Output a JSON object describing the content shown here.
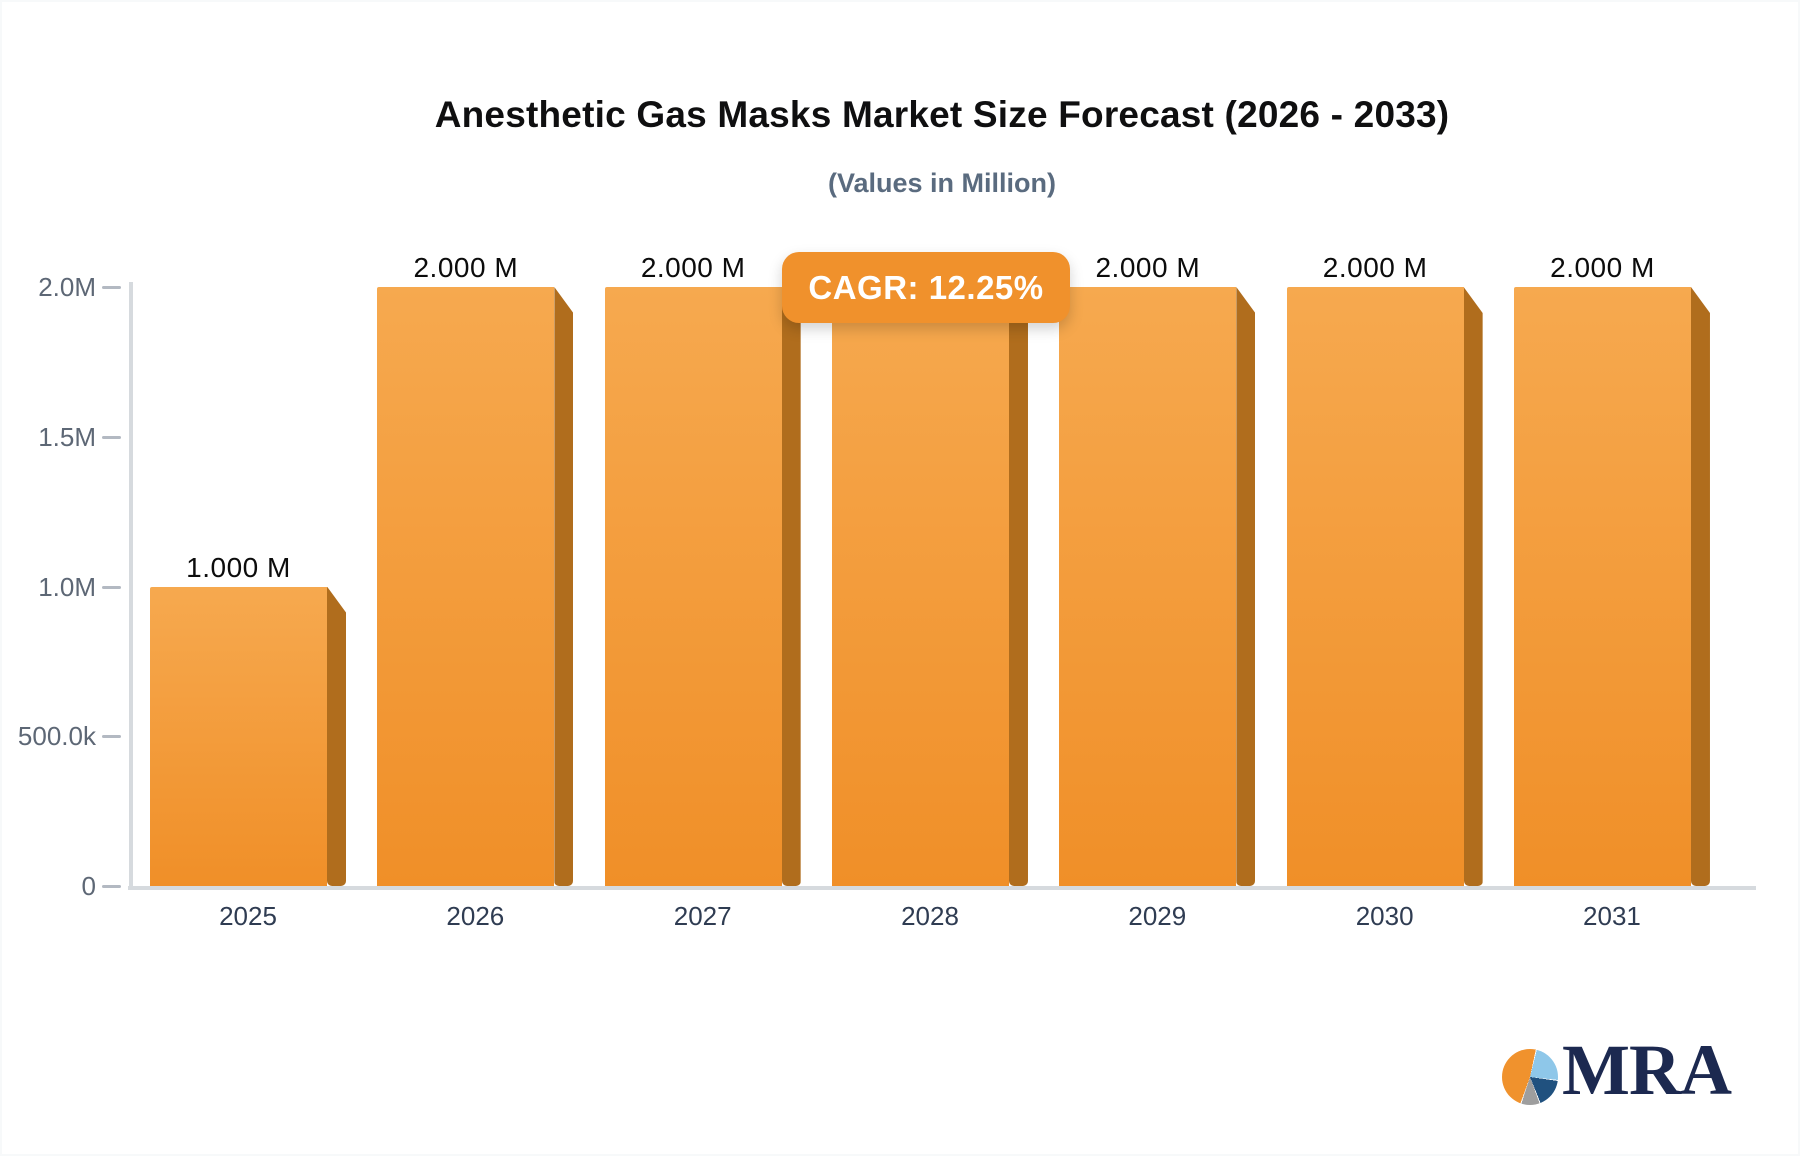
{
  "header": {
    "title": "Anesthetic Gas Masks Market Size Forecast (2026 - 2033)",
    "subtitle": "(Values in Million)"
  },
  "cagr_badge": {
    "label": "CAGR: 12.25%",
    "bg_color": "#f0912c",
    "text_color": "#ffffff"
  },
  "chart_data": {
    "type": "bar",
    "title": "Anesthetic Gas Masks Market Size Forecast (2026 - 2033)",
    "subtitle": "(Values in Million)",
    "unit": "Million",
    "categories": [
      "2025",
      "2026",
      "2027",
      "2028",
      "2029",
      "2030",
      "2031"
    ],
    "values": [
      1.0,
      2.0,
      2.0,
      2.0,
      2.0,
      2.0,
      2.0
    ],
    "value_labels": [
      "1.000 M",
      "2.000 M",
      "2.000 M",
      "2.000 M",
      "2.000 M",
      "2.000 M",
      "2.000 M"
    ],
    "ylim": [
      0,
      2.0
    ],
    "y_ticks": [
      {
        "value": 0.0,
        "label": "0"
      },
      {
        "value": 0.5,
        "label": "500.0k"
      },
      {
        "value": 1.0,
        "label": "1.0M"
      },
      {
        "value": 1.5,
        "label": "1.5M"
      },
      {
        "value": 2.0,
        "label": "2.0M"
      }
    ],
    "grid": false,
    "legend": "none",
    "annotation": "CAGR: 12.25%",
    "bar_color_top": "#f6a94f",
    "bar_color_bottom": "#f08f28",
    "bar_side_color": "#b06d1d"
  },
  "logo": {
    "text": "MRA",
    "pie_colors": {
      "orange": "#f0922d",
      "light_blue": "#8ec7e9",
      "navy": "#20517f",
      "gray": "#9e9e9e"
    },
    "text_color": "#1c2950"
  }
}
